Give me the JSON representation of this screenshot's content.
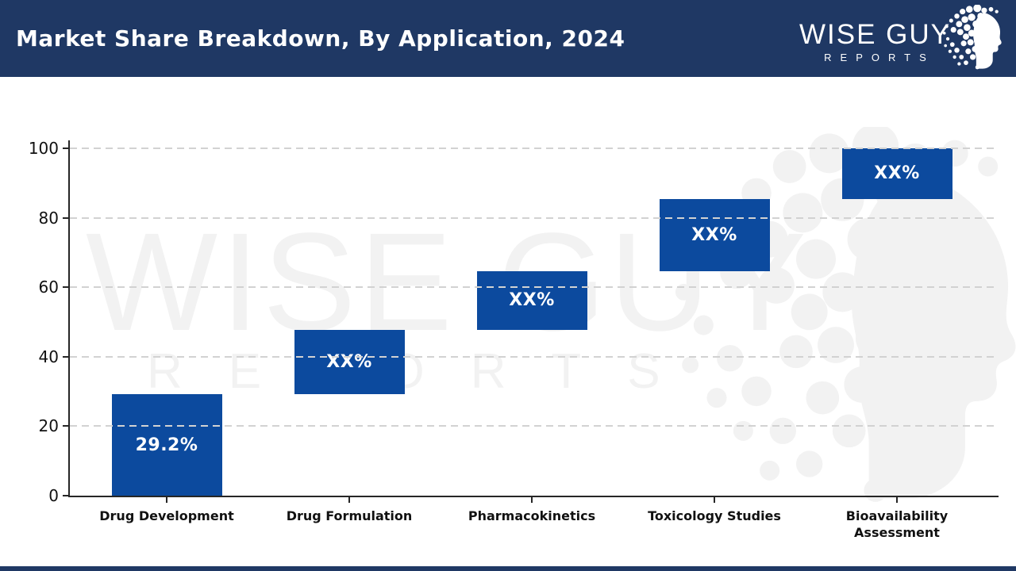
{
  "header": {
    "title": "Market Share Breakdown, By Application, 2024",
    "logo": {
      "line1": "WISE GUY",
      "line2": "REPORTS"
    }
  },
  "watermark": {
    "line1": "WISE GUY",
    "line2": "REPORTS"
  },
  "chart_data": {
    "type": "bar",
    "subtype": "waterfall",
    "title": "Market Share Breakdown, By Application, 2024",
    "categories": [
      "Drug Development",
      "Drug Formulation",
      "Pharmacokinetics",
      "Toxicology Studies",
      "Bioavailability Assessment"
    ],
    "segments": [
      {
        "category": "Drug Development",
        "start": 0,
        "end": 29.2,
        "label": "29.2%"
      },
      {
        "category": "Drug Formulation",
        "start": 29.2,
        "end": 47.8,
        "label": "XX%"
      },
      {
        "category": "Pharmacokinetics",
        "start": 47.8,
        "end": 64.6,
        "label": "XX%"
      },
      {
        "category": "Toxicology Studies",
        "start": 64.6,
        "end": 85.4,
        "label": "XX%"
      },
      {
        "category": "Bioavailability Assessment",
        "start": 85.4,
        "end": 100,
        "label": "XX%"
      }
    ],
    "xlabel": "",
    "ylabel": "",
    "ylim": [
      0,
      100
    ],
    "yticks": [
      0,
      20,
      40,
      60,
      80,
      100
    ],
    "grid": "dashed-horizontal",
    "legend": "none"
  },
  "colors": {
    "header_bg": "#1f3864",
    "footer_bg": "#1f3864",
    "bar": "#0c4a9e",
    "bar_label": "#ffffff",
    "grid": "#d2d2d2",
    "axis": "#262626",
    "tick_text": "#111111",
    "watermark": "#f2f2f2"
  }
}
